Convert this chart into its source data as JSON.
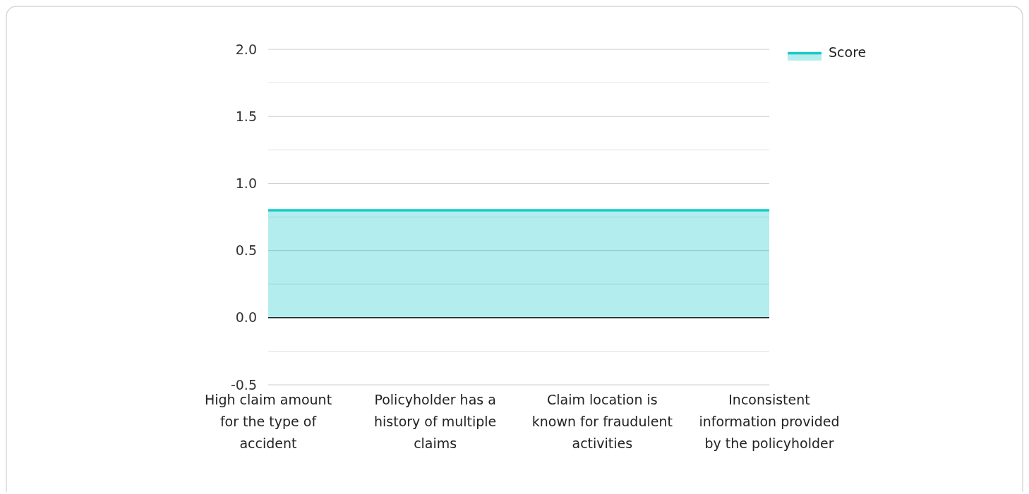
{
  "chart_data": {
    "type": "area",
    "categories": [
      "High claim amount for the type of accident",
      "Policyholder has a history of multiple claims",
      "Claim location is known for fraudulent activities",
      "Inconsistent information provided by the policyholder"
    ],
    "series": [
      {
        "name": "Score",
        "color": "#17c8c8",
        "values": [
          0.8,
          0.8,
          0.8,
          0.8
        ]
      }
    ],
    "ylim": [
      -0.5,
      2.0
    ],
    "yticks": [
      -0.5,
      {
        "value": -0.25,
        "label": null
      },
      {
        "value": 0,
        "label": "0.0"
      },
      {
        "value": 0.25,
        "label": null
      },
      0.5,
      {
        "value": 0.75,
        "label": null
      },
      {
        "value": 1,
        "label": "1.0"
      },
      {
        "value": 1.25,
        "label": null
      },
      1.5,
      {
        "value": 1.75,
        "label": null
      },
      {
        "value": 2,
        "label": "2.0"
      }
    ],
    "grid": "y",
    "legend": "top right"
  }
}
